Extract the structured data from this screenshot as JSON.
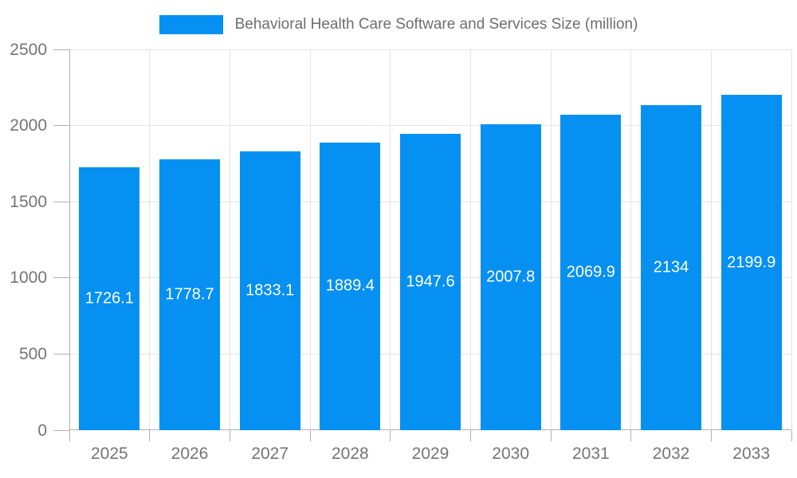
{
  "legend": {
    "label": "Behavioral Health Care Software and Services Size (million)"
  },
  "colors": {
    "bar": "#0690f2",
    "grid": "#e3e3e3",
    "axis": "#b0b0b0",
    "tick_text": "#757575",
    "legend_text": "#6e6e6e",
    "bar_value_text": "#ffffff",
    "background": "#ffffff"
  },
  "chart_data": {
    "type": "bar",
    "title": "Behavioral Health Care Software and Services Size (million)",
    "categories": [
      "2025",
      "2026",
      "2027",
      "2028",
      "2029",
      "2030",
      "2031",
      "2032",
      "2033"
    ],
    "values": [
      1726.1,
      1778.7,
      1833.1,
      1889.4,
      1947.6,
      2007.8,
      2069.9,
      2134,
      2199.9
    ],
    "xlabel": "",
    "ylabel": "",
    "ylim": [
      0,
      2500
    ],
    "yticks": [
      0,
      500,
      1000,
      1500,
      2000,
      2500
    ],
    "grid": true,
    "legend_position": "top-center",
    "value_labels": "inside-middle"
  }
}
